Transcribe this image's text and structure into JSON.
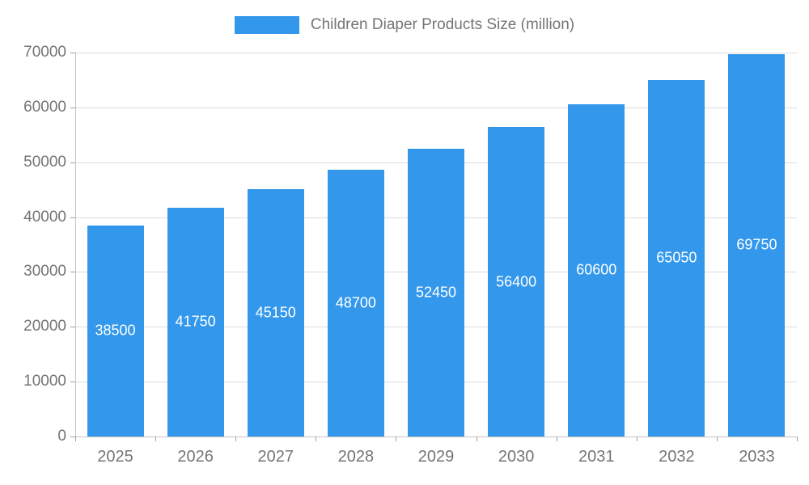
{
  "chart_data": {
    "type": "bar",
    "title": "Children Diaper Products Size (million)",
    "categories": [
      "2025",
      "2026",
      "2027",
      "2028",
      "2029",
      "2030",
      "2031",
      "2032",
      "2033"
    ],
    "values": [
      38500,
      41750,
      45150,
      48700,
      52450,
      56400,
      60600,
      65050,
      69750
    ],
    "xlabel": "",
    "ylabel": "",
    "ylim": [
      0,
      70000
    ],
    "yticks": [
      0,
      10000,
      20000,
      30000,
      40000,
      50000,
      60000,
      70000
    ],
    "grid": true,
    "legend_position": "top-center",
    "bar_color": "#3398EC",
    "bar_label_color": "#ffffff",
    "axis_text_color": "#757575",
    "grid_color": "#dcdcdc"
  }
}
